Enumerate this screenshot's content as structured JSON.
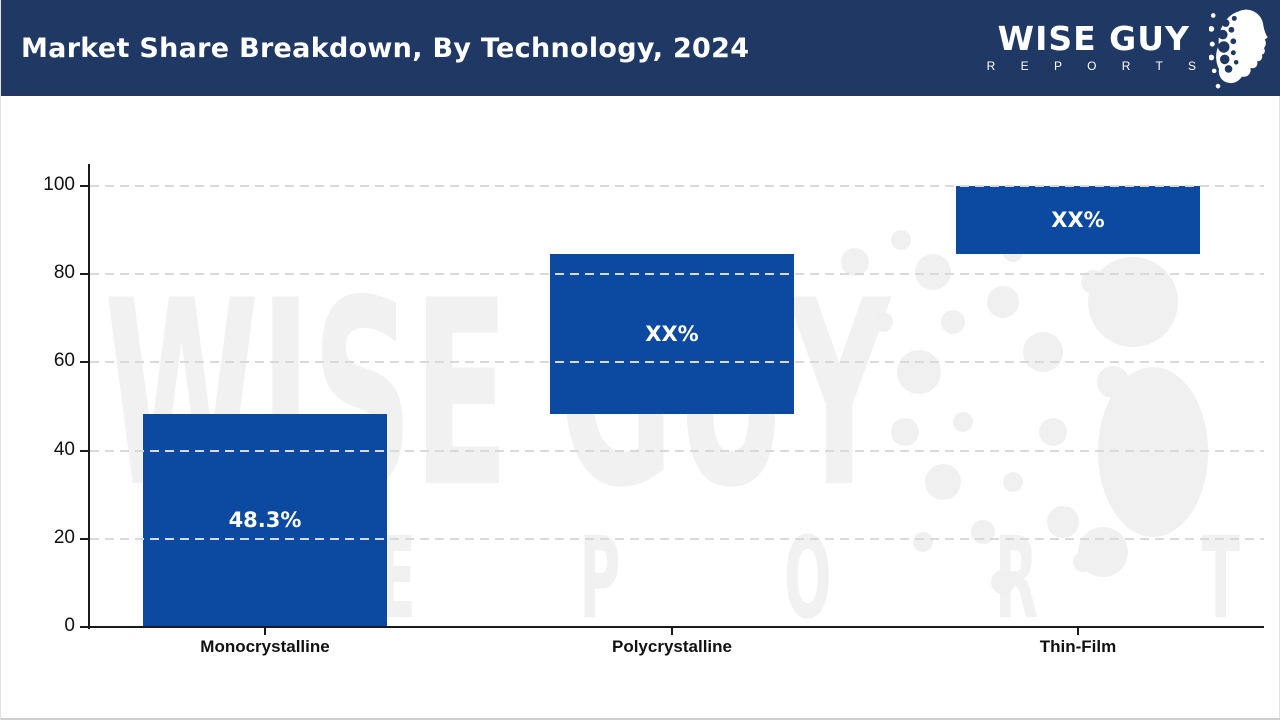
{
  "header": {
    "title": "Market Share Breakdown, By Technology, 2024",
    "logo": {
      "line1": "WISE GUY",
      "line2": "R E P O R T S"
    }
  },
  "watermark": {
    "line1": "WISE GUY",
    "line2": "R E P O R T S"
  },
  "chart_data": {
    "type": "bar",
    "subtype": "waterfall",
    "title": "Market Share Breakdown, By Technology, 2024",
    "categories": [
      "Monocrystalline",
      "Polycrystalline",
      "Thin-Film"
    ],
    "bars": [
      {
        "category": "Monocrystalline",
        "start": 0,
        "end": 48.3,
        "label": "48.3%"
      },
      {
        "category": "Polycrystalline",
        "start": 48.3,
        "end": 84.5,
        "label": "XX%"
      },
      {
        "category": "Thin-Film",
        "start": 84.5,
        "end": 100,
        "label": "XX%"
      }
    ],
    "xlabel": "",
    "ylabel": "",
    "ylim": [
      0,
      100
    ],
    "yticks": [
      0,
      20,
      40,
      60,
      80,
      100
    ],
    "grid": "horizontal-dashed",
    "legend": "none",
    "bar_color": "#0c4aa1",
    "bar_label_color": "#ffffff"
  },
  "colors": {
    "header_bg": "#203864",
    "axis": "#1a1a1a",
    "gridline": "#d9d9d9",
    "watermark": "#f1f1f1",
    "bottom_edge": "#cfcfcf"
  }
}
